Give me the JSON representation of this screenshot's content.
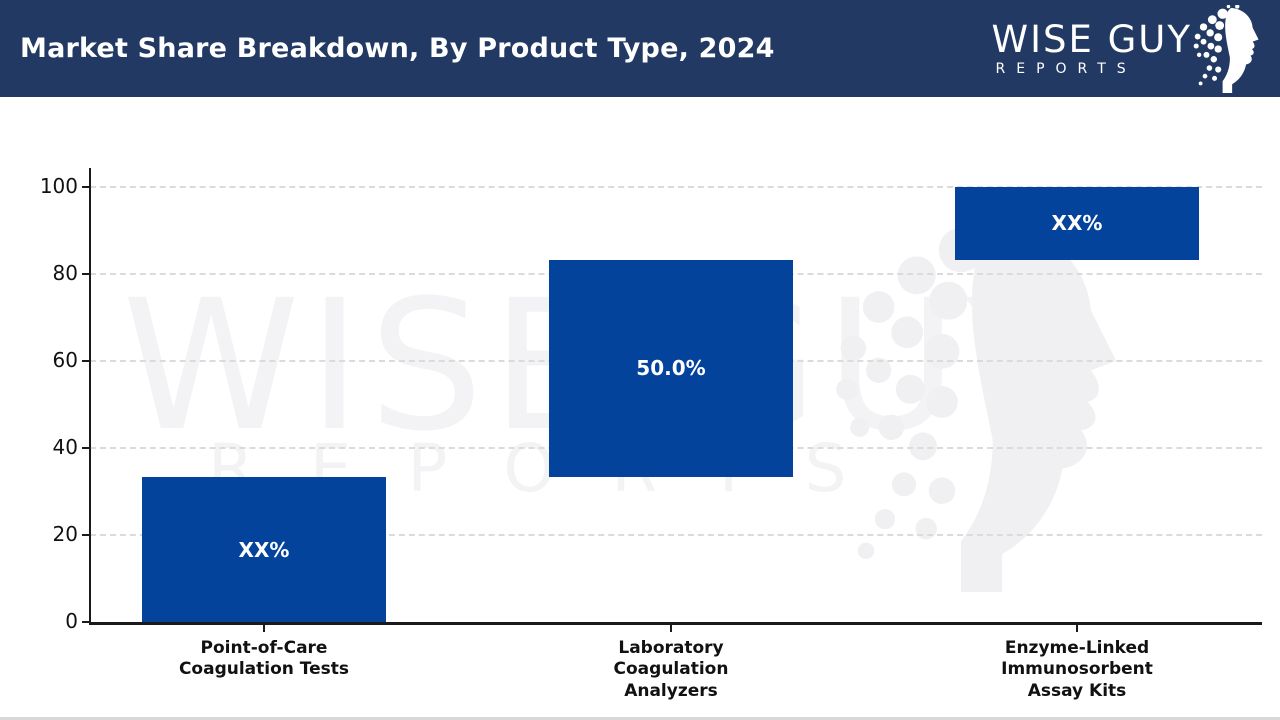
{
  "header": {
    "title": "Market Share Breakdown, By Product Type, 2024",
    "background": "#223A63",
    "logo": {
      "name": "WISE GUY",
      "subtitle": "REPORTS"
    }
  },
  "watermark": {
    "line1": "WISE GUY",
    "line2": "REPORTS"
  },
  "chart_data": {
    "type": "bar",
    "variant": "waterfall-stacked",
    "title": "Market Share Breakdown, By Product Type, 2024",
    "categories": [
      "Point-of-Care\nCoagulation Tests",
      "Laboratory\nCoagulation\nAnalyzers",
      "Enzyme-Linked\nImmunosorbent\nAssay Kits"
    ],
    "bars": [
      {
        "category": "Point-of-Care Coagulation Tests",
        "start": 0,
        "end": 33.3,
        "label": "XX%"
      },
      {
        "category": "Laboratory Coagulation Analyzers",
        "start": 33.3,
        "end": 83.3,
        "label": "50.0%"
      },
      {
        "category": "Enzyme-Linked Immunosorbent Assay Kits",
        "start": 83.3,
        "end": 100,
        "label": "XX%"
      }
    ],
    "ylim": [
      0,
      100
    ],
    "yticks": [
      0,
      20,
      40,
      60,
      80,
      100
    ],
    "xlabel": "",
    "ylabel": "",
    "grid": "horizontal-dashed",
    "legend": "none",
    "bar_color": "#04439B",
    "bar_label_color": "#FFFFFF",
    "axis_color": "#1a1a1a",
    "gridline_color": "#DBDBDB"
  }
}
